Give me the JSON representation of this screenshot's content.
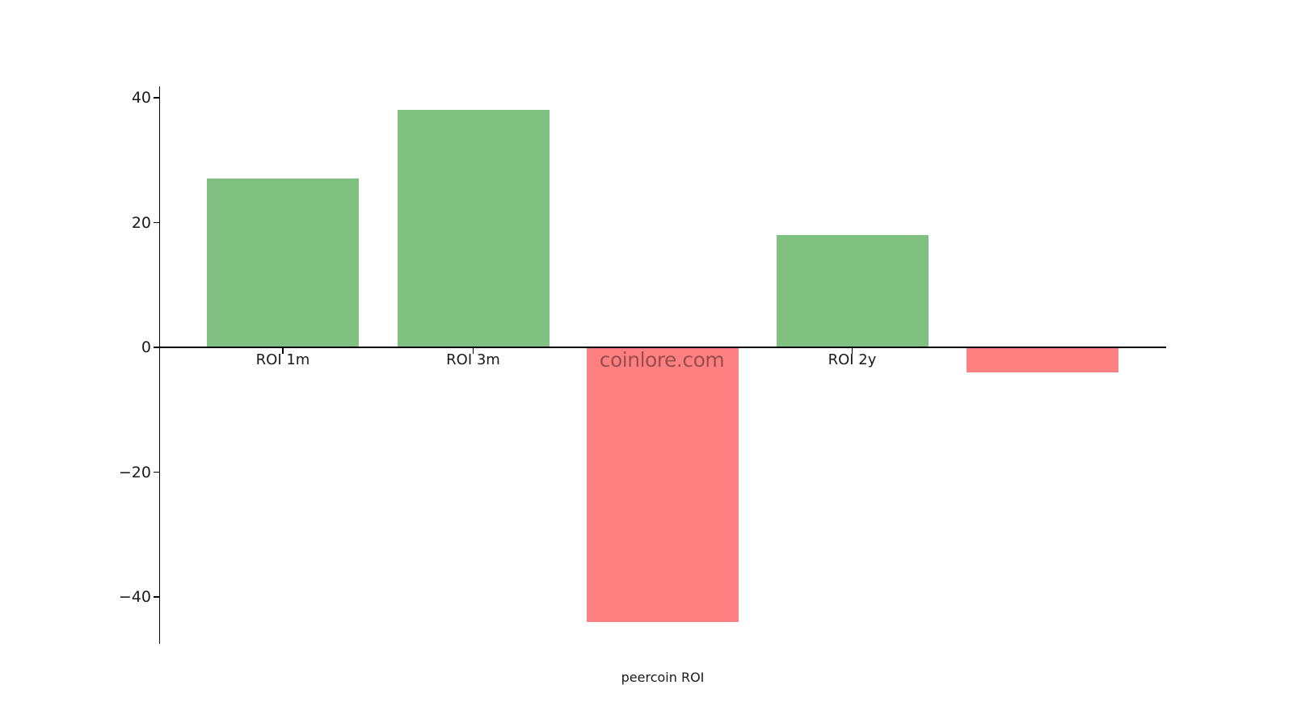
{
  "watermark": {
    "text": "coinlore.com"
  },
  "chart_data": {
    "type": "bar",
    "title": "",
    "xlabel": "peercoin ROI",
    "ylabel": "",
    "categories": [
      "ROI 1m",
      "ROI 3m",
      "",
      "ROI 2y",
      ""
    ],
    "values": [
      27,
      38,
      -44,
      18,
      -4
    ],
    "yticks": [
      40,
      20,
      0,
      -20,
      -40
    ],
    "ylim": [
      -48,
      42
    ],
    "grid": false,
    "legend": null,
    "notes": "labels of the two negative bars are hidden behind the bars; zero-position x axis",
    "colors": {
      "positive_bar": "#80c080",
      "negative_bar": "#ff8080",
      "axis": "#000000",
      "text": "#1a1a1a"
    }
  }
}
